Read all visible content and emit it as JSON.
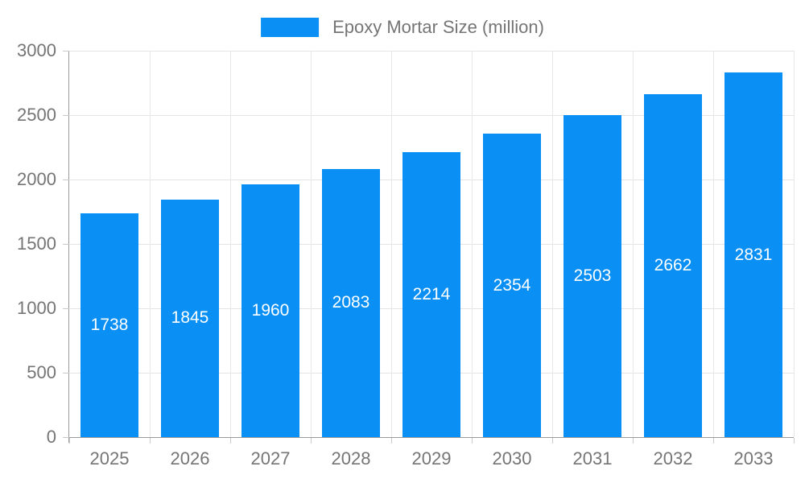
{
  "legend": {
    "label": "Epoxy Mortar Size (million)"
  },
  "chart_data": {
    "type": "bar",
    "title": "Epoxy Mortar Size (million)",
    "categories": [
      "2025",
      "2026",
      "2027",
      "2028",
      "2029",
      "2030",
      "2031",
      "2032",
      "2033"
    ],
    "values": [
      1738,
      1845,
      1960,
      2083,
      2214,
      2354,
      2503,
      2662,
      2831
    ],
    "xlabel": "",
    "ylabel": "",
    "ylim": [
      0,
      3000
    ],
    "yticks": [
      0,
      500,
      1000,
      1500,
      2000,
      2500,
      3000
    ],
    "grid": true,
    "legend_position": "top-center",
    "bar_color": "#0a90f5",
    "value_label_color": "#ffffff",
    "axis_text_color": "#757575",
    "gridline_color": "#e4e4e4",
    "axis_line_color": "#9a9a9a"
  }
}
